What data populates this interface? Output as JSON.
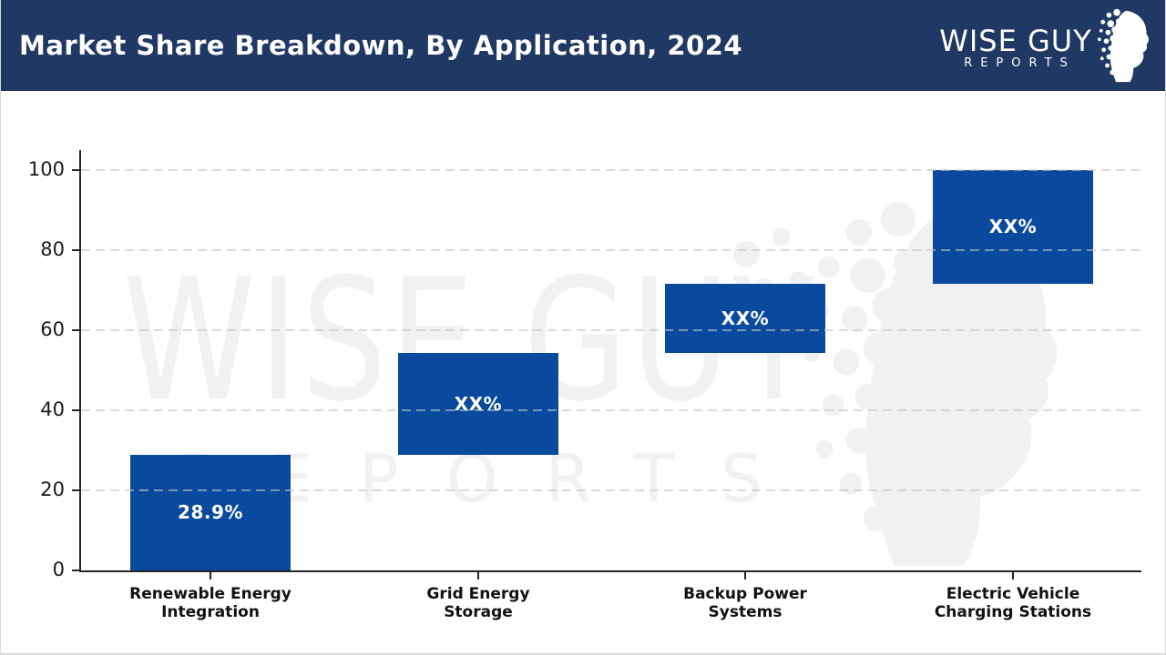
{
  "header": {
    "title": "Market Share Breakdown, By Application, 2024",
    "brand_name": "WISE GUY",
    "brand_subtitle": "REPORTS",
    "header_color": "#203864"
  },
  "watermark": {
    "line1": "WISE GUY",
    "line2": "REPORTS"
  },
  "chart_data": {
    "type": "bar",
    "subtype": "floating-waterfall",
    "title": "Market Share Breakdown, By Application, 2024",
    "xlabel": "",
    "ylabel": "",
    "ylim": [
      0,
      100
    ],
    "yticks": [
      0,
      20,
      40,
      60,
      80,
      100
    ],
    "grid": "dashed-horizontal",
    "legend": "none",
    "bar_color": "#0a4a9e",
    "categories": [
      "Renewable Energy\nIntegration",
      "Grid Energy\nStorage",
      "Backup Power\nSystems",
      "Electric Vehicle\nCharging Stations"
    ],
    "segments": [
      {
        "category": "Renewable Energy\nIntegration",
        "start": 0,
        "end": 28.9,
        "value_label": "28.9%"
      },
      {
        "category": "Grid Energy\nStorage",
        "start": 28.9,
        "end": 54.3,
        "value_label": "XX%"
      },
      {
        "category": "Backup Power\nSystems",
        "start": 54.3,
        "end": 71.6,
        "value_label": "XX%"
      },
      {
        "category": "Electric Vehicle\nCharging Stations",
        "start": 71.6,
        "end": 100,
        "value_label": "XX%"
      }
    ]
  }
}
